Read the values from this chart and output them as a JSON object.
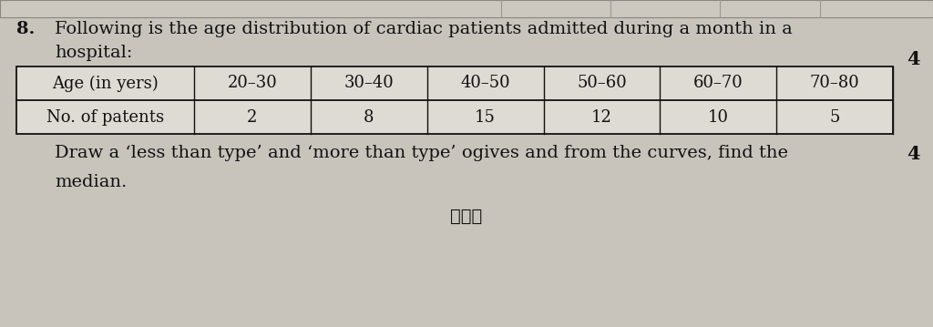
{
  "question_number": "8.",
  "question_text": "Following is the age distribution of cardiac patients admitted during a month in a\nhospital:",
  "marks_q": "4",
  "col_header": [
    "Age (in yers)",
    "20–30",
    "30–40",
    "40–50",
    "50–60",
    "60–70",
    "70–80"
  ],
  "row_label": "No. of patents",
  "row_values": [
    "2",
    "8",
    "15",
    "12",
    "10",
    "5"
  ],
  "instruction": "Draw a ‘less than type’ and ‘more than type’ ogives and from the curves, find the",
  "instruction2": "median.",
  "marks_i": "4",
  "footer": "׳׳׳",
  "bg_color": "#c8c4bc",
  "text_color": "#111111",
  "table_bg": "#dedad4",
  "font_size_main": 14,
  "font_size_table": 13,
  "font_size_footer": 14
}
